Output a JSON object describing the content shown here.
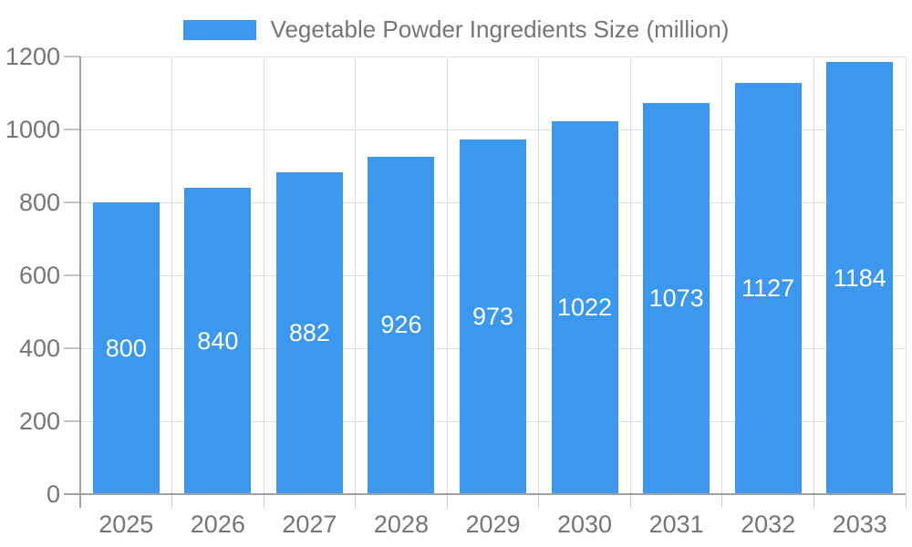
{
  "legend": {
    "label": "Vegetable Powder Ingredients Size (million)"
  },
  "chart_data": {
    "type": "bar",
    "title": "Vegetable Powder Ingredients Size (million)",
    "categories": [
      "2025",
      "2026",
      "2027",
      "2028",
      "2029",
      "2030",
      "2031",
      "2032",
      "2033"
    ],
    "values": [
      800,
      840,
      882,
      926,
      973,
      1022,
      1073,
      1127,
      1184
    ],
    "xlabel": "",
    "ylabel": "",
    "ylim": [
      0,
      1200
    ],
    "yticks": [
      0,
      200,
      400,
      600,
      800,
      1000,
      1200
    ],
    "grid": true,
    "legend_position": "top-center",
    "bar_value_labels": "inside-middle",
    "colors": {
      "bar": "#3B98EC",
      "bar_label": "#FFFFFF",
      "axis": "#A0A0A0",
      "y_tick": "#C2C2C2",
      "x_tick": "#CCCCCC",
      "grid": "#DEDEDE",
      "text": "#757575",
      "background": "#FFFFFF"
    }
  }
}
